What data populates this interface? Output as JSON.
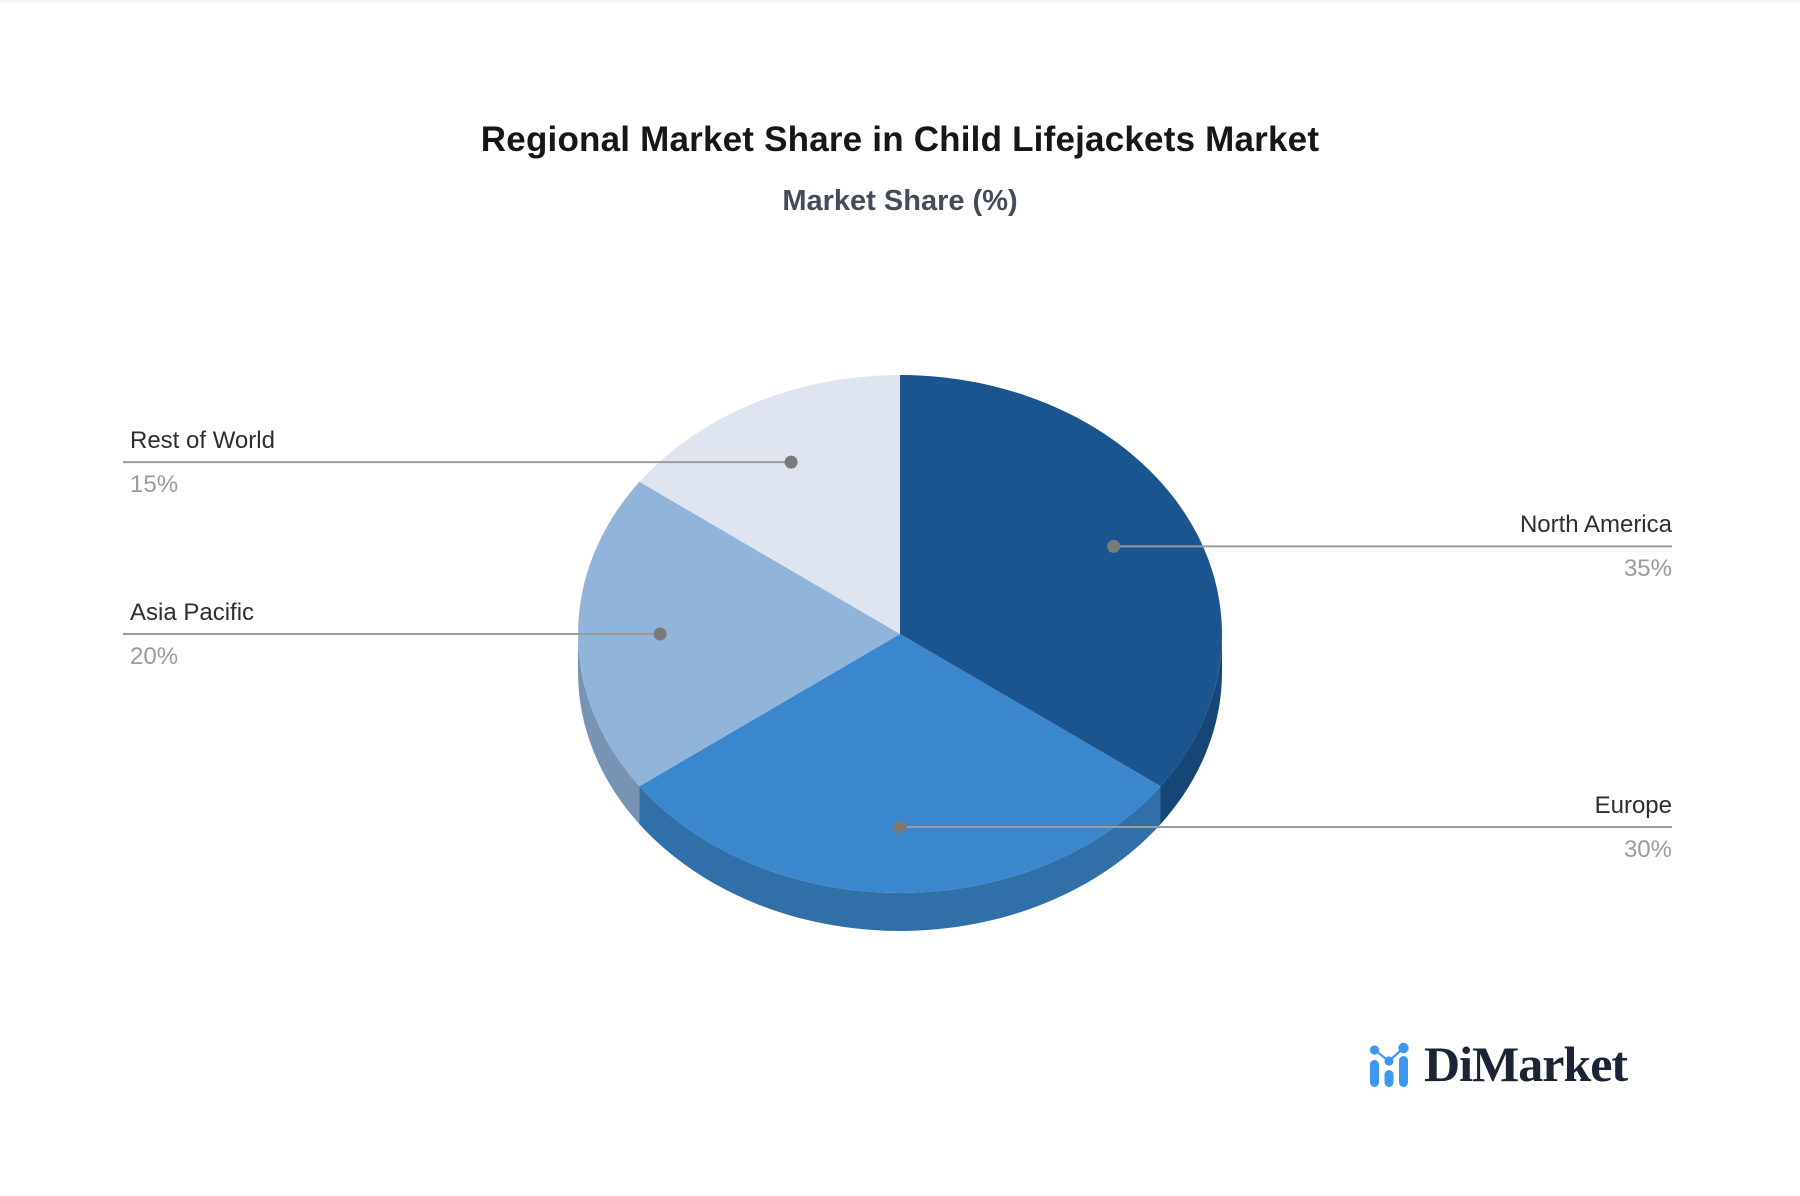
{
  "chart_data": {
    "type": "pie",
    "title": "Regional Market Share in Child Lifejackets Market",
    "subtitle": "Market Share (%)",
    "unit": "%",
    "categories": [
      "North America",
      "Europe",
      "Asia Pacific",
      "Rest of World"
    ],
    "values": [
      35,
      30,
      20,
      15
    ],
    "labels": [
      "35%",
      "30%",
      "20%",
      "15%"
    ],
    "colors": [
      "#1a5590",
      "#3b87cd",
      "#91b4db",
      "#dee5f0"
    ],
    "style": "3d",
    "direction": "clockwise",
    "start_angle_deg": 0,
    "legend_position": "none",
    "background": "#ffffff",
    "callout": {
      "line_color": "#9c9c9c",
      "dot_color": "#7a7a7a",
      "name_color": "#2e2e2e",
      "value_color": "#9b9b9b"
    }
  },
  "branding": {
    "logo_text": "DiMarket",
    "logo_icon": "bar-line-chart-icon",
    "logo_color": "#1b2435",
    "logo_accent": "#3f97f4"
  }
}
